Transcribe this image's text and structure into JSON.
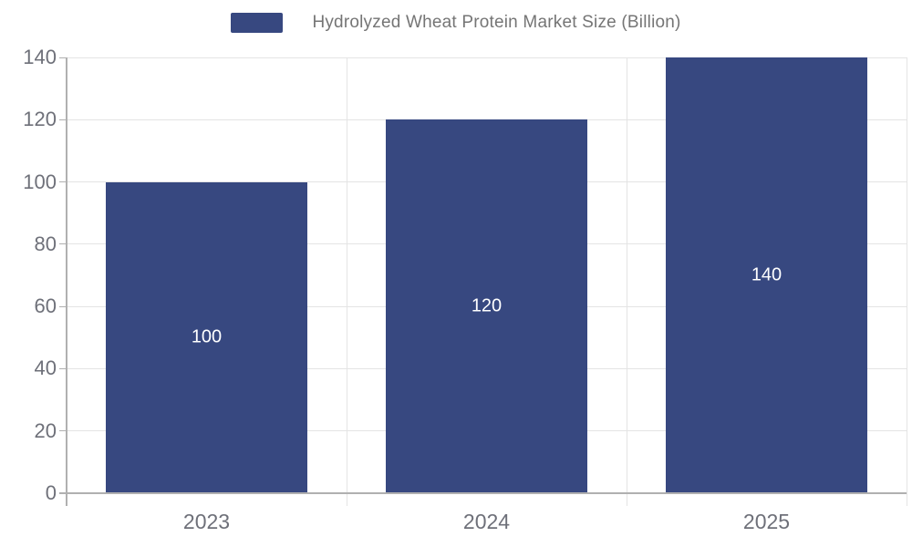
{
  "page": {
    "background": "#ffffff"
  },
  "legend": {
    "label": "Hydrolyzed Wheat Protein Market Size (Billion)"
  },
  "chart_data": {
    "type": "bar",
    "title": "Hydrolyzed Wheat Protein Market Size (Billion)",
    "legend_entries": [
      "Hydrolyzed Wheat Protein Market Size (Billion)"
    ],
    "legend_position": "top",
    "categories": [
      "2023",
      "2024",
      "2025"
    ],
    "values": [
      100,
      120,
      140
    ],
    "value_labels": [
      "100",
      "120",
      "140"
    ],
    "xlabel": "",
    "ylabel": "",
    "ylim": [
      0,
      140
    ],
    "yticks": [
      0,
      20,
      40,
      60,
      80,
      100,
      120,
      140
    ],
    "ytick_labels": [
      "0",
      "20",
      "40",
      "60",
      "80",
      "100",
      "120",
      "140"
    ],
    "grid": true,
    "colors": {
      "bar": "#374880",
      "grid_line": "#e4e4e4",
      "axis_line": "#b0b0b0",
      "axis_text": "#6e7079",
      "value_label": "#ffffff",
      "legend_text": "#757575"
    }
  }
}
